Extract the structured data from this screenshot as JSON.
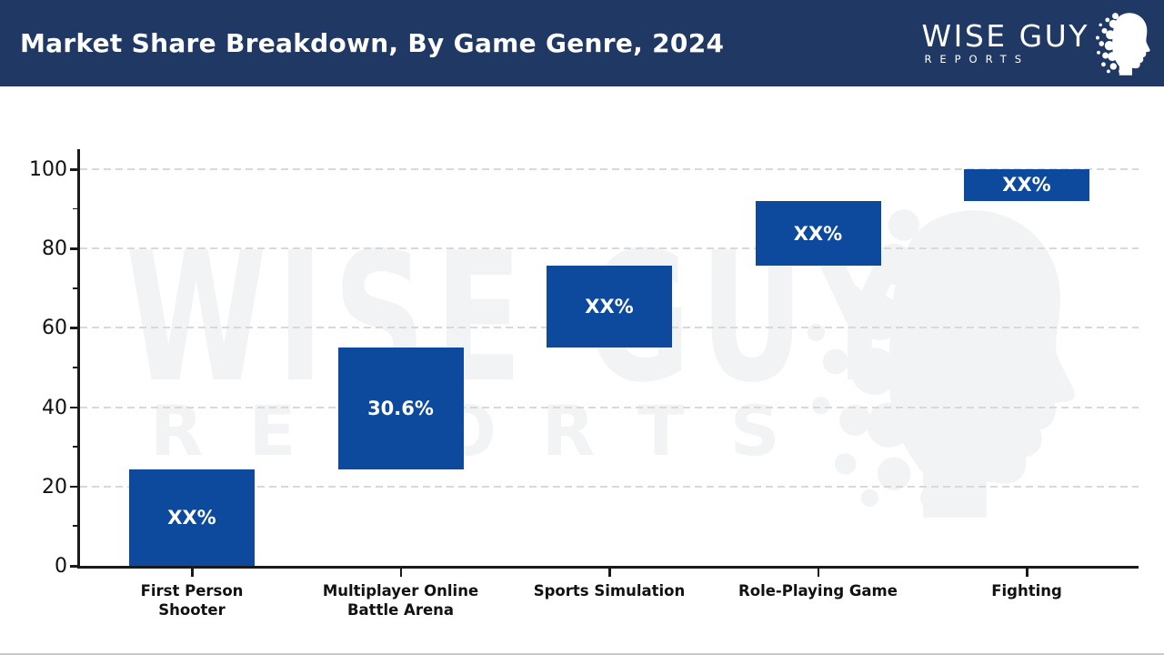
{
  "header": {
    "title": "Market Share Breakdown, By Game Genre, 2024",
    "logo": {
      "line1": "WISE GUY",
      "line2": "REPORTS"
    }
  },
  "watermark": {
    "line1": "WISE GUY",
    "line2": "REPORTS"
  },
  "colors": {
    "header_bg": "#1f3864",
    "bar": "#0d4a9e",
    "gridline": "#d9d9d9",
    "axis": "#1a1a1a",
    "bar_label": "#ffffff",
    "watermark": "#f2f3f5"
  },
  "chart_data": {
    "type": "bar",
    "subtype": "floating-waterfall",
    "title": "Market Share Breakdown, By Game Genre, 2024",
    "xlabel": "",
    "ylabel": "",
    "ylim": [
      0,
      100
    ],
    "yticks": [
      0,
      20,
      40,
      60,
      80,
      100
    ],
    "grid": "horizontal-dashed",
    "legend": "none",
    "categories": [
      "First Person\nShooter",
      "Multiplayer Online\nBattle Arena",
      "Sports Simulation",
      "Role-Playing Game",
      "Fighting"
    ],
    "segments": [
      {
        "category": "First Person Shooter",
        "start": 0,
        "end": 24.4,
        "height": 24.4,
        "label": "XX%"
      },
      {
        "category": "Multiplayer Online Battle Arena",
        "start": 24.4,
        "end": 55.0,
        "height": 30.6,
        "label": "30.6%"
      },
      {
        "category": "Sports Simulation",
        "start": 55.0,
        "end": 75.6,
        "height": 20.6,
        "label": "XX%"
      },
      {
        "category": "Role-Playing Game",
        "start": 75.6,
        "end": 92.0,
        "height": 16.4,
        "label": "XX%"
      },
      {
        "category": "Fighting",
        "start": 92.0,
        "end": 100.0,
        "height": 8.0,
        "label": "XX%"
      }
    ]
  }
}
